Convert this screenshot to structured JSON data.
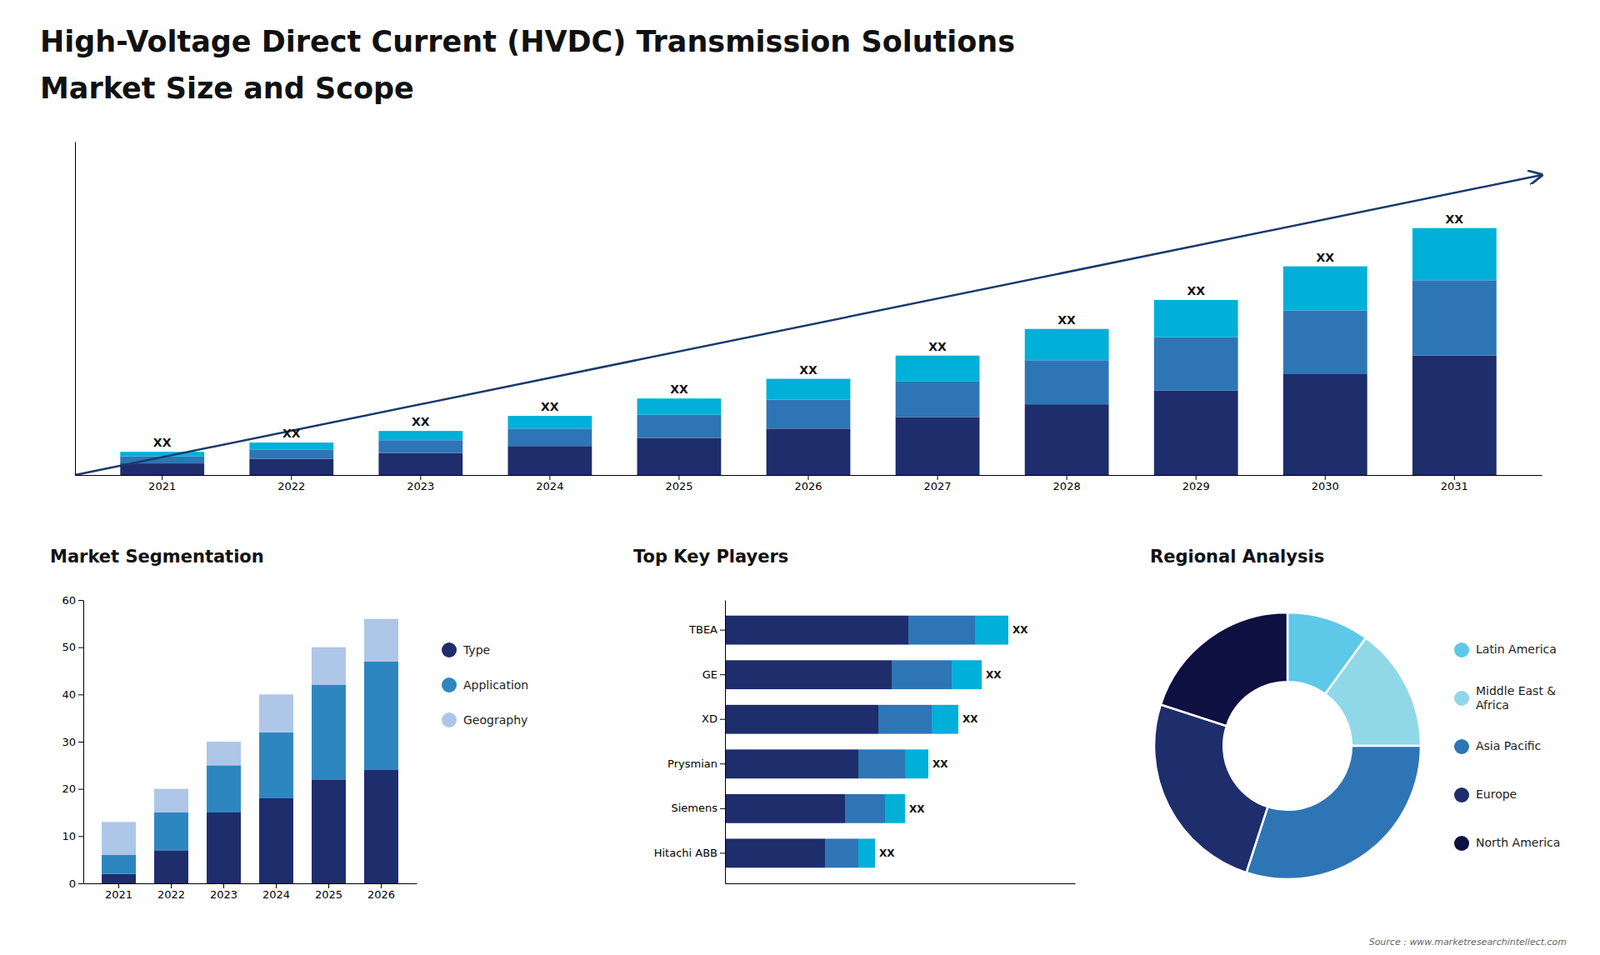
{
  "chart_data": [
    {
      "type": "bar",
      "title": "High-Voltage Direct Current (HVDC) Transmission Solutions",
      "subtitle": "Market Size and Scope",
      "annotations": [
        "Source : www.marketresearchintellect.com"
      ],
      "stacked": true,
      "categories": [
        "2021",
        "2022",
        "2023",
        "2024",
        "2025",
        "2026",
        "2027",
        "2028",
        "2029",
        "2030",
        "2031"
      ],
      "series": [
        {
          "color": "#1e2d6b",
          "values": [
            1.0,
            1.4,
            1.9,
            2.5,
            3.2,
            4.0,
            5.0,
            6.1,
            7.3,
            8.7,
            10.3
          ]
        },
        {
          "color": "#2e75b6",
          "values": [
            0.6,
            0.8,
            1.1,
            1.5,
            2.0,
            2.5,
            3.1,
            3.8,
            4.6,
            5.5,
            6.5
          ]
        },
        {
          "color": "#00b0d8",
          "values": [
            0.4,
            0.6,
            0.8,
            1.1,
            1.4,
            1.8,
            2.2,
            2.7,
            3.2,
            3.8,
            4.5
          ],
          "value_labels": [
            "XX",
            "XX",
            "XX",
            "XX",
            "XX",
            "XX",
            "XX",
            "XX",
            "XX",
            "XX",
            "XX"
          ]
        }
      ],
      "ylim": [
        0,
        28.755
      ],
      "tick_labels": "x"
    },
    {
      "type": "bar",
      "title": "Market Segmentation",
      "stacked": true,
      "categories": [
        "2021",
        "2022",
        "2023",
        "2024",
        "2025",
        "2026"
      ],
      "series": [
        {
          "name": "Type",
          "color": "#1e2d6b",
          "values": [
            2,
            7,
            15,
            18,
            22,
            24
          ]
        },
        {
          "name": "Application",
          "color": "#2e86c1",
          "values": [
            4,
            8,
            10,
            14,
            20,
            23
          ]
        },
        {
          "name": "Geography",
          "color": "#aec6e8",
          "values": [
            7,
            5,
            5,
            8,
            8,
            9
          ]
        }
      ],
      "ylim": [
        0,
        60
      ],
      "yticks": [
        0,
        10,
        20,
        30,
        40,
        50,
        60
      ],
      "legend": "right"
    },
    {
      "type": "bar",
      "title": "Top Key Players",
      "orientation": "horizontal",
      "stacked": true,
      "categories": [
        "TBEA",
        "GE",
        "XD",
        "Prysmian",
        "Siemens",
        "Hitachi ABB"
      ],
      "series": [
        {
          "color": "#1e2d6b",
          "values": [
            0.55,
            0.5,
            0.46,
            0.4,
            0.36,
            0.3
          ]
        },
        {
          "color": "#2e75b6",
          "values": [
            0.2,
            0.18,
            0.16,
            0.14,
            0.12,
            0.1
          ]
        },
        {
          "color": "#00b0d8",
          "values": [
            0.1,
            0.09,
            0.08,
            0.07,
            0.06,
            0.05
          ],
          "value_labels": [
            "XX",
            "XX",
            "XX",
            "XX",
            "XX",
            "XX"
          ]
        }
      ],
      "xlim": [
        0,
        1.05
      ],
      "tick_labels": "y"
    },
    {
      "type": "donut",
      "title": "Regional Analysis",
      "categories": [
        "Latin America",
        "Middle East &\nAfrica",
        "Asia Pacific",
        "Europe",
        "North America"
      ],
      "values": [
        10,
        15,
        30,
        25,
        20
      ],
      "colors": [
        "#5dc8e8",
        "#90d8e8",
        "#2e75b6",
        "#1e2d6b",
        "#0d1040"
      ],
      "legend": "right"
    }
  ]
}
